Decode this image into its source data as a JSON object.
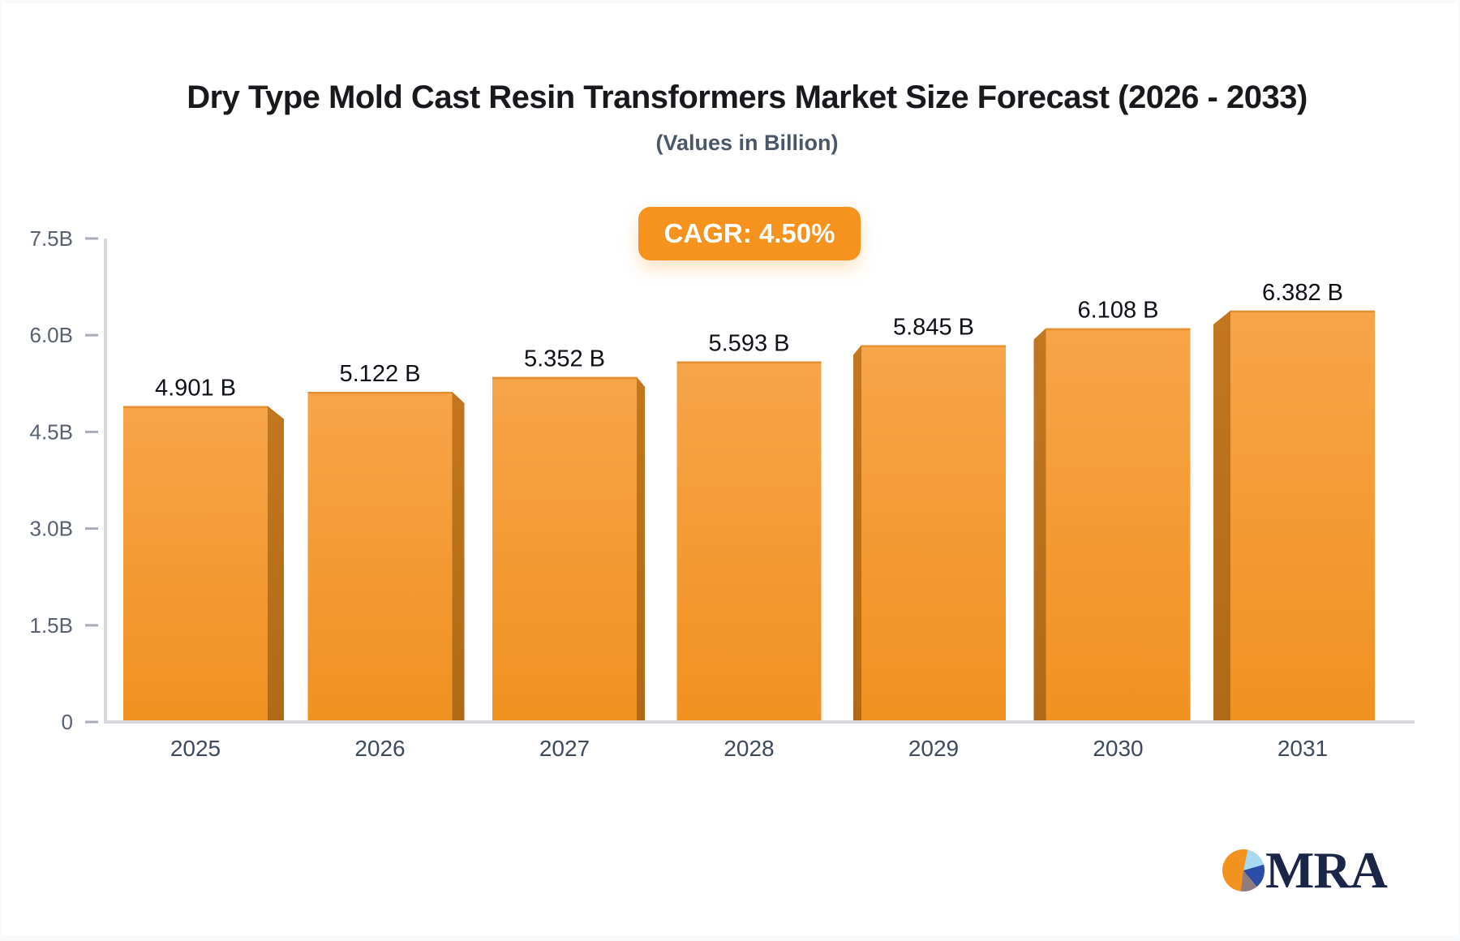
{
  "page": {
    "title": "Dry Type Mold Cast Resin Transformers Market Size Forecast (2026 - 2033)",
    "subtitle": "(Values in Billion)",
    "badge_label": "CAGR: 4.50%",
    "logo_text": "MRA"
  },
  "chart_data": {
    "type": "bar",
    "title": "Dry Type Mold Cast Resin Transformers Market Size Forecast (2026 - 2033)",
    "subtitle": "(Values in Billion)",
    "annotation": "CAGR: 4.50%",
    "categories": [
      "2025",
      "2026",
      "2027",
      "2028",
      "2029",
      "2030",
      "2031"
    ],
    "values": [
      4.901,
      5.122,
      5.352,
      5.593,
      5.845,
      6.108,
      6.382
    ],
    "bar_labels": [
      "4.901 B",
      "5.122 B",
      "5.352 B",
      "5.593 B",
      "5.845 B",
      "6.108 B",
      "6.382 B"
    ],
    "xlabel": "",
    "ylabel": "",
    "ylim": [
      0,
      7.5
    ],
    "ytick_values": [
      7.5,
      6.0,
      4.5,
      3.0,
      1.5,
      0
    ],
    "ytick_labels": [
      "7.5B",
      "6.0B",
      "4.5B",
      "3.0B",
      "1.5B",
      "0"
    ],
    "grid": false,
    "legend": false
  },
  "colors": {
    "bar_face_top": "#f7a44a",
    "bar_face_bottom": "#f19120",
    "bar_top_edge": "#e08c2c",
    "bar_side_top": "#c3761f",
    "bar_side_bottom": "#b06a17",
    "axis_line": "#d8d8dd",
    "tick_dash": "#a7aeb9",
    "ytick_label": "#57616f",
    "xtick_label": "#3c4a5c",
    "value_label": "#0d1117",
    "badge_bg": "#f6921e",
    "badge_text": "#ffffff",
    "title": "#17191c",
    "subtitle": "#4a5768",
    "logo_navy": "#1a2547"
  }
}
